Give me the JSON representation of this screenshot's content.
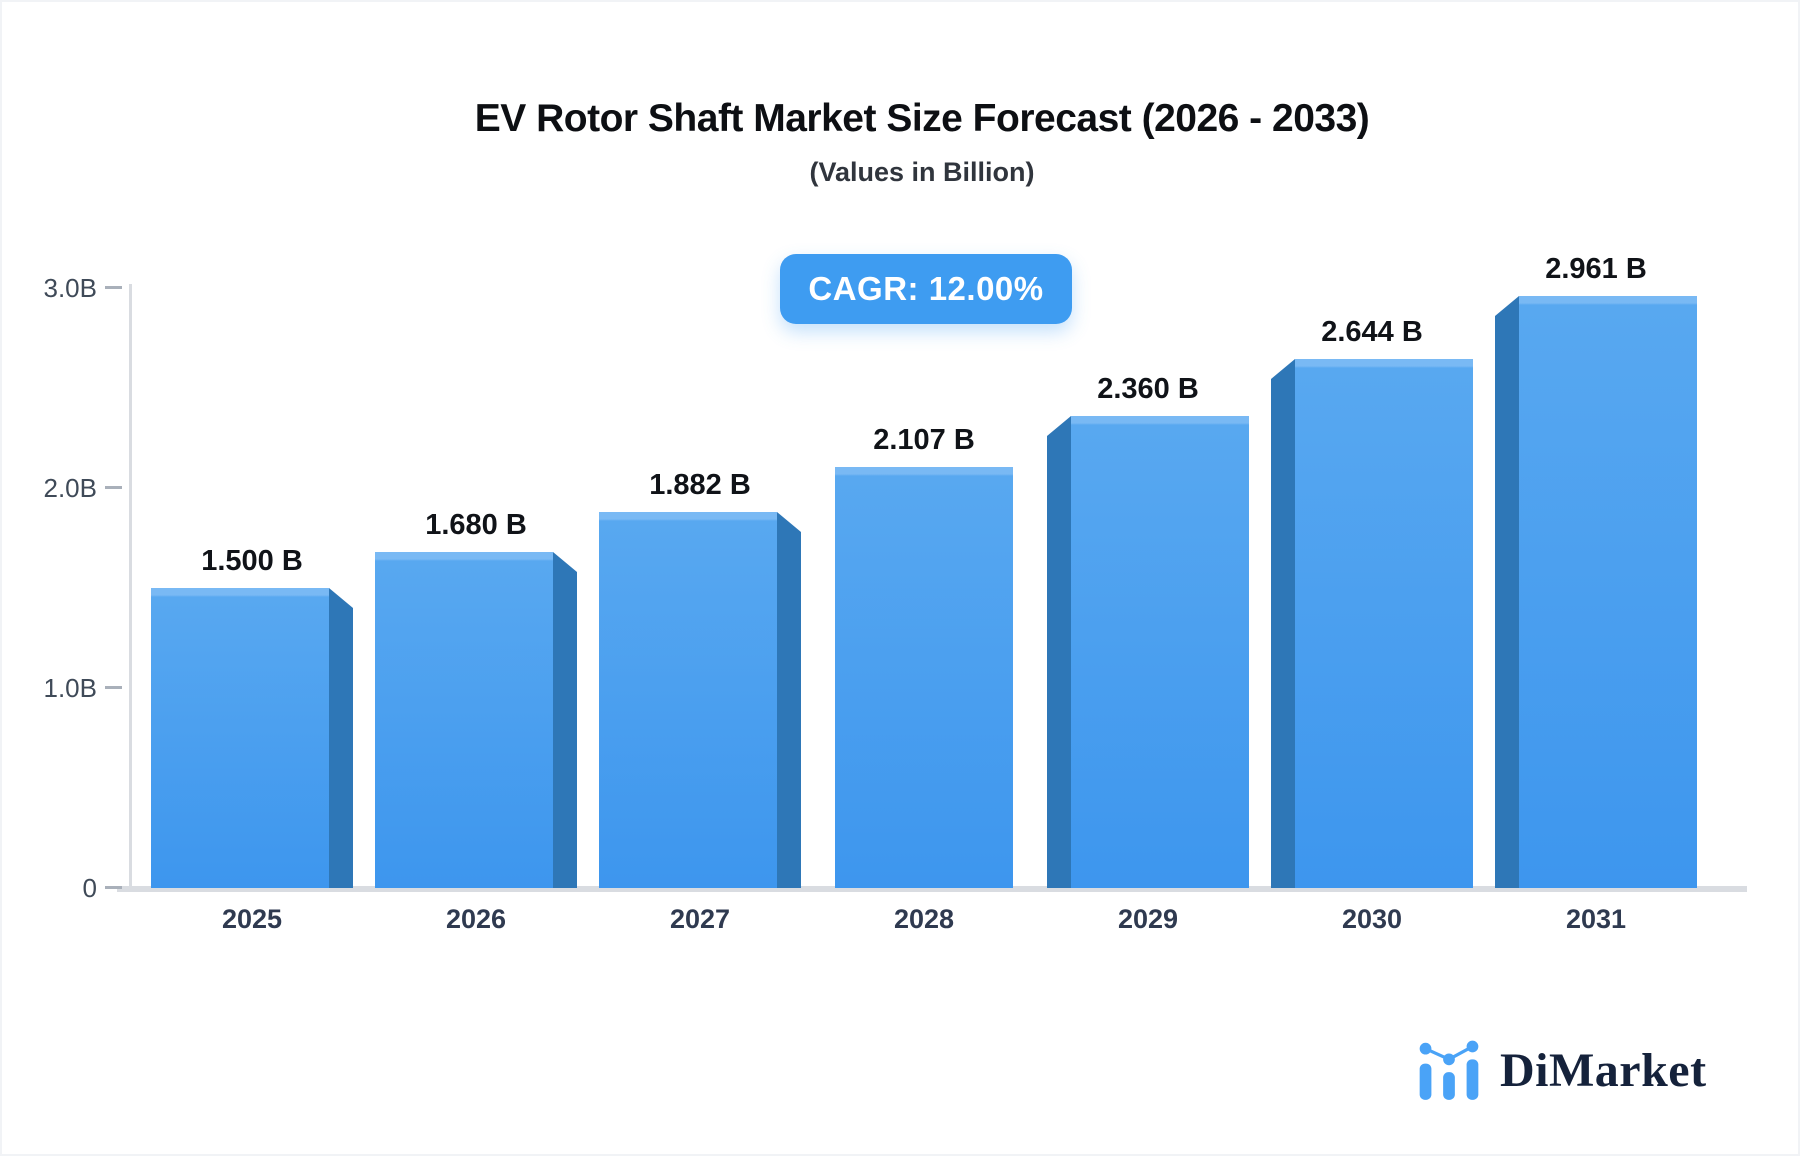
{
  "title": "EV Rotor Shaft Market Size Forecast (2026 - 2033)",
  "subtitle": "(Values in Billion)",
  "badge": {
    "label": "CAGR: 12.00%"
  },
  "chart_data": {
    "type": "bar",
    "categories": [
      "2025",
      "2026",
      "2027",
      "2028",
      "2029",
      "2030",
      "2031"
    ],
    "values": [
      1.5,
      1.68,
      1.882,
      2.107,
      2.36,
      2.644,
      2.961
    ],
    "bar_labels": [
      "1.500 B",
      "1.680 B",
      "1.882 B",
      "2.107 B",
      "2.360 B",
      "2.644 B",
      "2.961 B"
    ],
    "title": "EV Rotor Shaft Market Size Forecast (2026 - 2033)",
    "subtitle": "(Values in Billion)",
    "xlabel": "",
    "ylabel": "",
    "ylim": [
      0,
      3.2
    ],
    "yticks": [
      {
        "value": 0,
        "label": "0"
      },
      {
        "value": 1,
        "label": "1.0B"
      },
      {
        "value": 2,
        "label": "2.0B"
      },
      {
        "value": 3,
        "label": "3.0B"
      }
    ],
    "grid": false,
    "legend": false,
    "style": "3d-bars-beveled-toward-center"
  },
  "logo": {
    "text": "DiMarket",
    "icon": "mini-bar-chart-logo-icon"
  },
  "colors": {
    "accent_blue": "#3e9cf1",
    "bar_cap": "#79b9f4",
    "bar_top": "#58a8f0",
    "bar_bottom": "#3d96ee",
    "bar_side": "#2e77b7",
    "axis_line": "#d9dce1",
    "tick_dash": "#a9b0ba",
    "tick_text": "#3f4a58",
    "year_text": "#2f3a50",
    "value_text": "#101318",
    "title_text": "#0d0f13",
    "subtitle_text": "#30353d",
    "logo_text": "#15223b",
    "logo_icon": "#4aa3f7",
    "card_border": "#f1f3f6"
  }
}
